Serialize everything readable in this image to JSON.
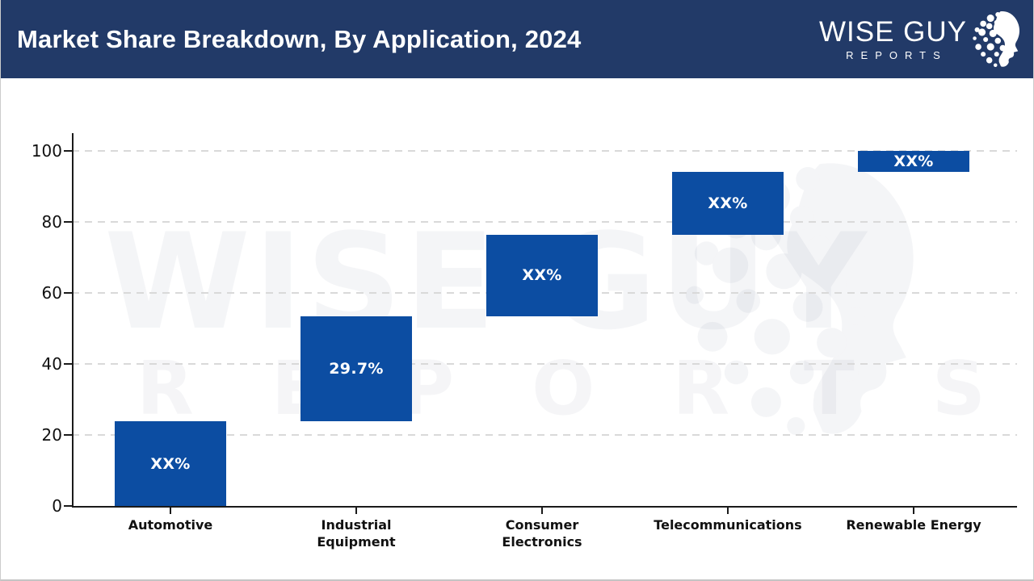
{
  "header": {
    "title": "Market Share Breakdown, By Application, 2024",
    "bg_color": "#223A68",
    "logo": {
      "name": "WISE GUY",
      "tagline": "REPORTS"
    }
  },
  "watermark": {
    "line1": "WISE GUY",
    "line2": "REPORTS"
  },
  "chart_data": {
    "type": "bar",
    "variant": "waterfall",
    "title": "Market Share Breakdown, By Application, 2024",
    "xlabel": "",
    "ylabel": "",
    "ylim": [
      0,
      105
    ],
    "yticks": [
      0,
      20,
      40,
      60,
      80,
      100
    ],
    "grid": "horizontal-dashed",
    "legend": "none",
    "bar_color": "#0C4DA2",
    "bar_label_color": "#FFFFFF",
    "axis_color": "#1a1a1a",
    "categories": [
      "Automotive",
      "Industrial Equipment",
      "Consumer Electronics",
      "Telecommunications",
      "Renewable Energy"
    ],
    "category_lines": [
      [
        "Automotive"
      ],
      [
        "Industrial",
        "Equipment"
      ],
      [
        "Consumer",
        "Electronics"
      ],
      [
        "Telecommunications"
      ],
      [
        "Renewable Energy"
      ]
    ],
    "segments": [
      {
        "category": "Automotive",
        "start": 0,
        "end": 23.8,
        "height": 23.8,
        "value_label": "XX%"
      },
      {
        "category": "Industrial Equipment",
        "start": 23.8,
        "end": 53.5,
        "height": 29.7,
        "value_label": "29.7%"
      },
      {
        "category": "Consumer Electronics",
        "start": 53.5,
        "end": 76.3,
        "height": 22.8,
        "value_label": "XX%"
      },
      {
        "category": "Telecommunications",
        "start": 76.3,
        "end": 94.0,
        "height": 17.7,
        "value_label": "XX%"
      },
      {
        "category": "Renewable Energy",
        "start": 94.0,
        "end": 100.0,
        "height": 6.0,
        "value_label": "XX%"
      }
    ]
  }
}
